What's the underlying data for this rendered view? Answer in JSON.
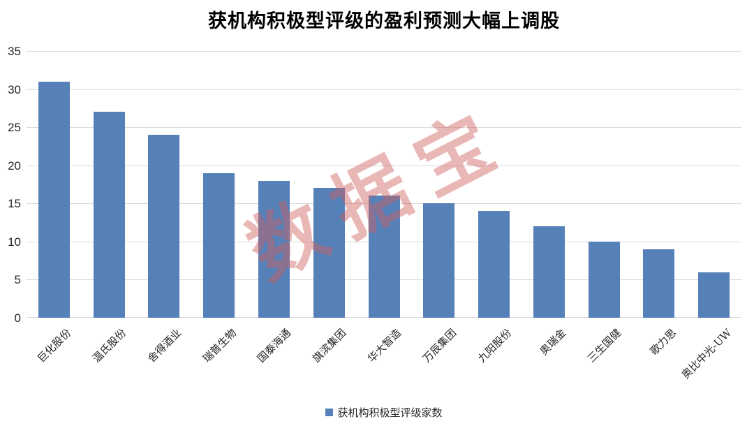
{
  "title": "获机构积极型评级的盈利预测大幅上调股",
  "watermark": {
    "text": "数据宝",
    "color": "rgba(208,96,96,0.45)"
  },
  "legend": {
    "label": "获机构积极型评级家数",
    "marker_color": "#5580B8"
  },
  "colors": {
    "bar": "#5580B8",
    "gridline": "#D9D9D9",
    "axis_text": "#262626",
    "title_text": "#000000",
    "background": "#FFFFFF"
  },
  "chart_data": {
    "type": "bar",
    "title": "获机构积极型评级的盈利预测大幅上调股",
    "categories": [
      "巨化股份",
      "温氏股份",
      "舍得酒业",
      "瑞普生物",
      "国泰海通",
      "旗滨集团",
      "华大智造",
      "万辰集团",
      "九阳股份",
      "奥瑞金",
      "三生国健",
      "歌力思",
      "奥比中光-UW"
    ],
    "values": [
      31,
      27,
      24,
      19,
      18,
      17,
      16,
      15,
      14,
      12,
      10,
      9,
      6
    ],
    "series_name": "获机构积极型评级家数",
    "xlabel": "",
    "ylabel": "",
    "ylim": [
      0,
      35
    ],
    "yticks": [
      0,
      5,
      10,
      15,
      20,
      25,
      30,
      35
    ],
    "grid": true,
    "legend_position": "bottom",
    "bar_color": "#5580B8",
    "gridline_color": "#D9D9D9",
    "x_label_rotation_deg": 45,
    "watermark_text": "数据宝"
  }
}
